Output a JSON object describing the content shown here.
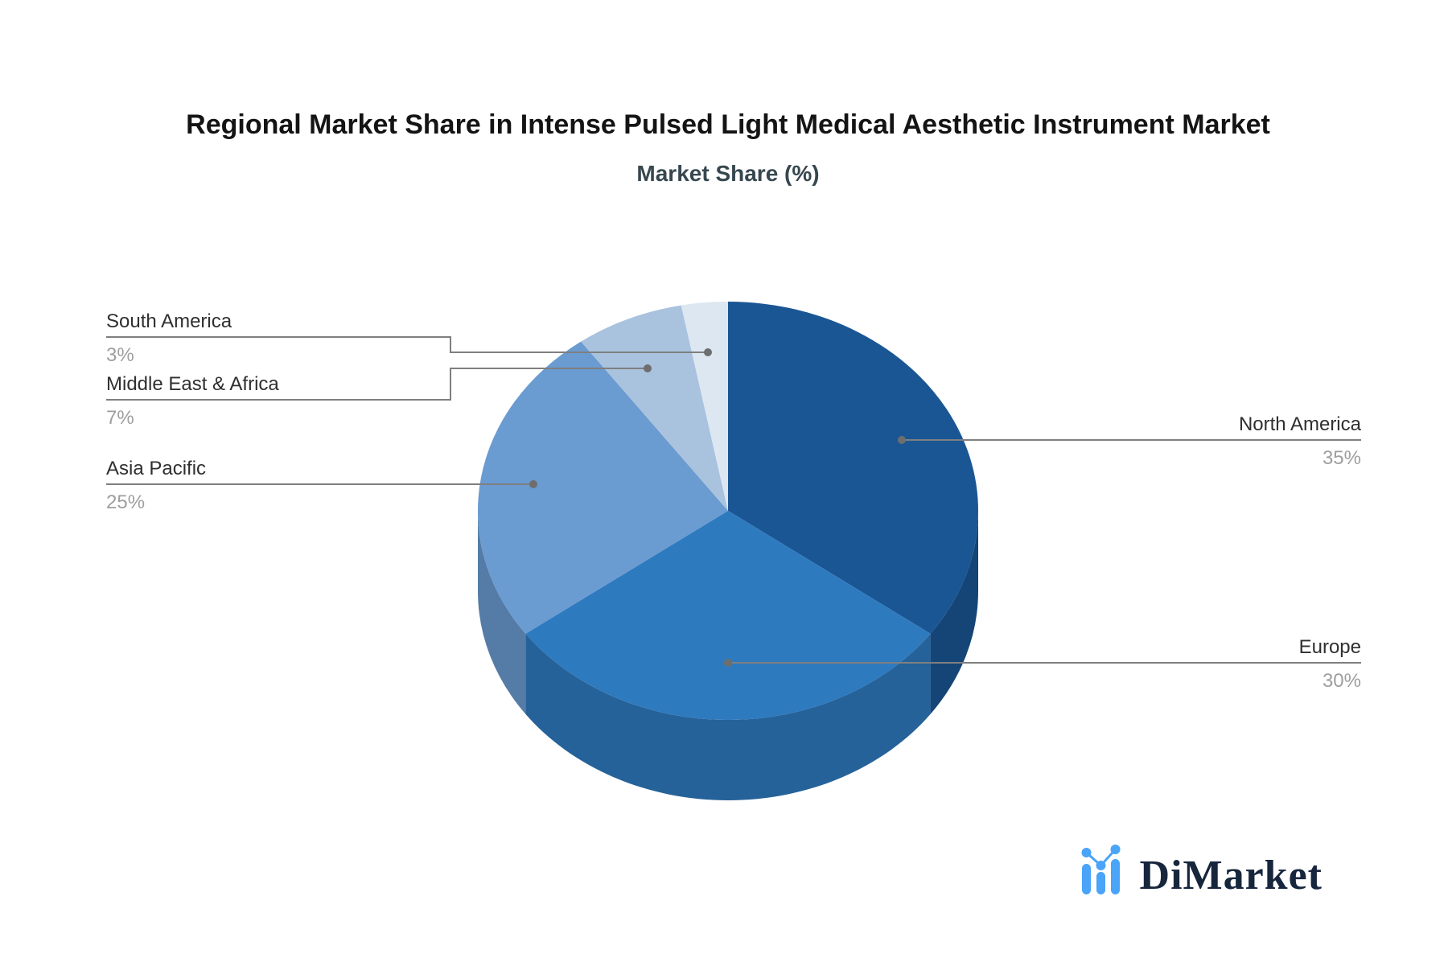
{
  "title": "Regional Market Share in Intense Pulsed Light Medical Aesthetic Instrument Market",
  "subtitle": "Market Share (%)",
  "watermark": {
    "brand": "DiMarket",
    "icon": "bar-line-chart-logo",
    "bar_color": "#4AA4F7",
    "text_color": "#16263C"
  },
  "chart_data": {
    "type": "pie",
    "three_d": true,
    "unit": "%",
    "series_name": "Market Share (%)",
    "direction": "clockwise",
    "start_angle_deg": 0,
    "legend_position": "none",
    "connector_color": "#7f7f7f",
    "label_color": "#2f2f2f",
    "value_color": "#9e9e9e",
    "slices": [
      {
        "label": "North America",
        "value": 35,
        "pct": "35%",
        "color": "#1A5694"
      },
      {
        "label": "Europe",
        "value": 30,
        "pct": "30%",
        "color": "#2E7ABF"
      },
      {
        "label": "Asia Pacific",
        "value": 25,
        "pct": "25%",
        "color": "#6A9BD1"
      },
      {
        "label": "Middle East & Africa",
        "value": 7,
        "pct": "7%",
        "color": "#A9C2DE"
      },
      {
        "label": "South America",
        "value": 3,
        "pct": "3%",
        "color": "#DCE7F2"
      }
    ]
  }
}
